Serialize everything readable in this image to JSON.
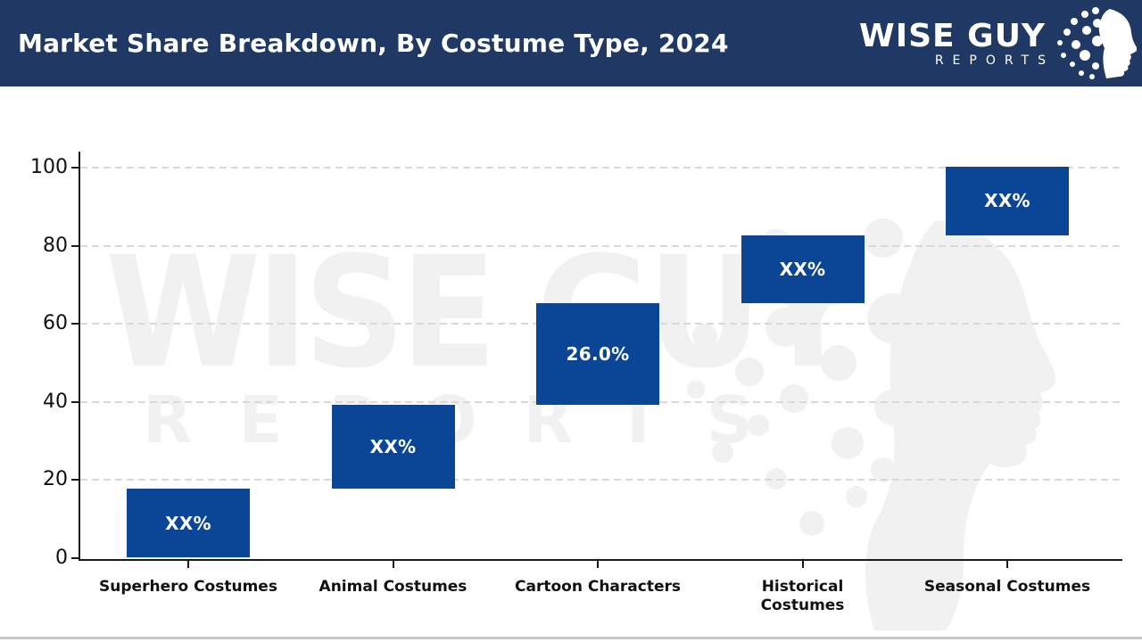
{
  "header": {
    "title": "Market Share Breakdown, By Costume Type, 2024",
    "brand": {
      "name": "WISE GUY",
      "subtitle": "REPORTS"
    }
  },
  "watermark": {
    "line1": "WISE GUY",
    "line2": "REPORTS"
  },
  "colors": {
    "header_bg": "#1f3864",
    "bar": "#0a4596",
    "grid": "#d9d9d9",
    "axis": "#1a1a1a",
    "watermark": "#f1f1f1"
  },
  "chart_data": {
    "type": "bar",
    "subtype": "waterfall",
    "title": "Market Share Breakdown, By Costume Type, 2024",
    "xlabel": "",
    "ylabel": "",
    "ylim": [
      0,
      104
    ],
    "yticks": [
      0,
      20,
      40,
      60,
      80,
      100
    ],
    "grid": "dashed-horizontal",
    "legend": "none",
    "categories": [
      "Superhero Costumes",
      "Animal Costumes",
      "Cartoon Characters",
      "Historical\nCostumes",
      "Seasonal Costumes"
    ],
    "segments": [
      {
        "category": "Superhero Costumes",
        "start": 0,
        "end": 17.5,
        "value_label": "XX%"
      },
      {
        "category": "Animal Costumes",
        "start": 17.5,
        "end": 39,
        "value_label": "XX%"
      },
      {
        "category": "Cartoon Characters",
        "start": 39,
        "end": 65,
        "value_label": "26.0%"
      },
      {
        "category": "Historical\nCostumes",
        "start": 65,
        "end": 82.5,
        "value_label": "XX%"
      },
      {
        "category": "Seasonal Costumes",
        "start": 82.5,
        "end": 100,
        "value_label": "XX%"
      }
    ]
  }
}
